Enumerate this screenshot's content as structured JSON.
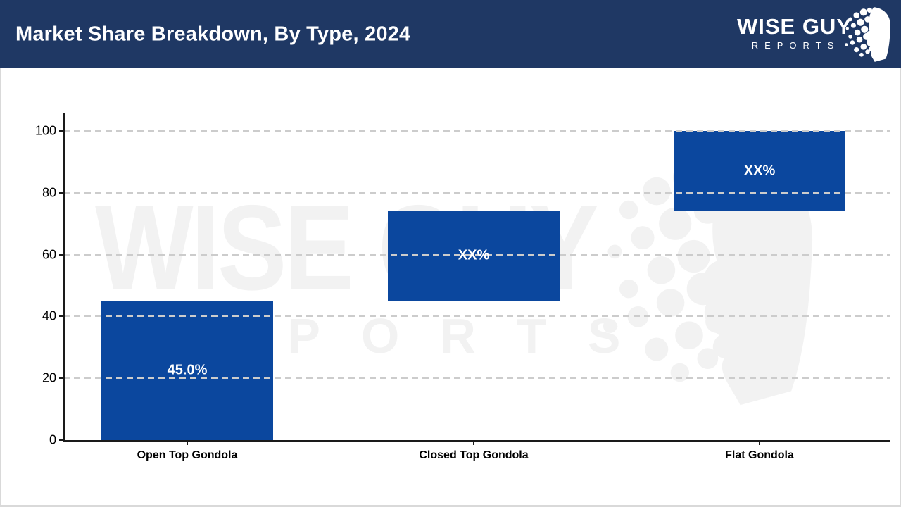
{
  "header": {
    "title": "Market Share Breakdown, By Type, 2024",
    "bg_color": "#1F3864",
    "logo": {
      "line1": "WISE GUY",
      "line2": "REPORTS"
    }
  },
  "watermark": {
    "line1": "WISE GUY",
    "line2": "REPORTS"
  },
  "colors": {
    "bar": "#0B479E",
    "grid": "#CCCCCC",
    "axis": "#1A1A1A",
    "watermark": "#F2F2F2",
    "page_border": "#D9D9D9"
  },
  "chart_data": {
    "type": "bar",
    "subtype": "waterfall-cumulative",
    "title": "Market Share Breakdown, By Type, 2024",
    "categories": [
      "Open Top Gondola",
      "Closed Top Gondola",
      "Flat Gondola"
    ],
    "segments": [
      {
        "category": "Open Top Gondola",
        "start": 0,
        "end": 45,
        "label": "45.0%"
      },
      {
        "category": "Closed Top Gondola",
        "start": 45,
        "end": 74.2,
        "label": "XX%"
      },
      {
        "category": "Flat Gondola",
        "start": 74.2,
        "end": 100,
        "label": "XX%"
      }
    ],
    "yticks": [
      0,
      20,
      40,
      60,
      80,
      100
    ],
    "ylim": [
      0,
      106
    ],
    "xlabel": "",
    "ylabel": "",
    "grid": "horizontal-dashed-above-bars",
    "legend": "none",
    "bar_color": "#0B479E"
  }
}
